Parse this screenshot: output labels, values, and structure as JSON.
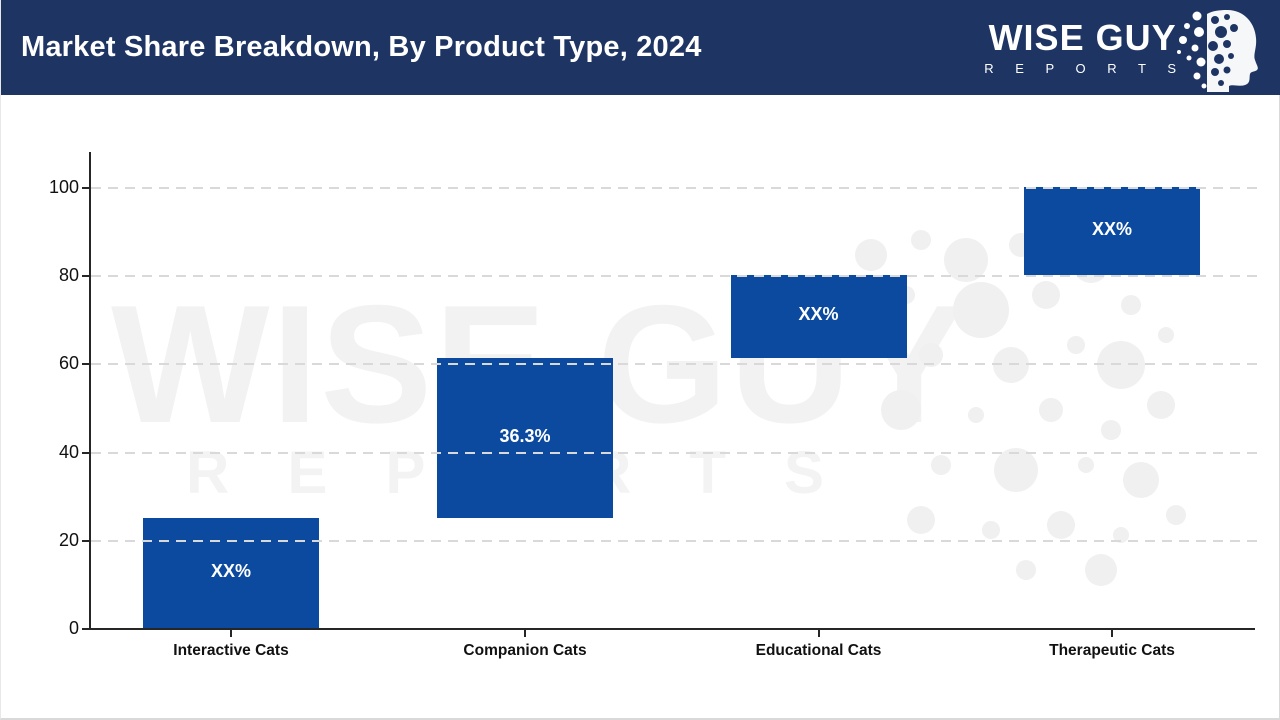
{
  "header": {
    "title": "Market Share Breakdown, By Product Type, 2024",
    "logo_main": "WISE GUY",
    "logo_sub": "R E P O R T S",
    "background_color": "#1e3564"
  },
  "watermark": {
    "line1": "WISE GUY",
    "line2": "REPORTS"
  },
  "chart_data": {
    "type": "bar",
    "subtype": "waterfall",
    "title": "Market Share Breakdown, By Product Type, 2024",
    "categories": [
      "Interactive Cats",
      "Companion Cats",
      "Educational Cats",
      "Therapeutic Cats"
    ],
    "segments": [
      {
        "category": "Interactive Cats",
        "start": 0,
        "end": 25,
        "label": "XX%"
      },
      {
        "category": "Companion Cats",
        "start": 25,
        "end": 61.3,
        "label": "36.3%"
      },
      {
        "category": "Educational Cats",
        "start": 61.3,
        "end": 80,
        "label": "XX%"
      },
      {
        "category": "Therapeutic Cats",
        "start": 80,
        "end": 100,
        "label": "XX%"
      }
    ],
    "xlabel": "",
    "ylabel": "",
    "ylim": [
      0,
      107
    ],
    "yticks": [
      0,
      20,
      40,
      60,
      80,
      100
    ],
    "grid": "dashed horizontal, drawn above bars",
    "legend": "none",
    "bar_color": "#0b4a9f",
    "axis_color": "#262626",
    "grid_color": "#d9d9d9"
  }
}
